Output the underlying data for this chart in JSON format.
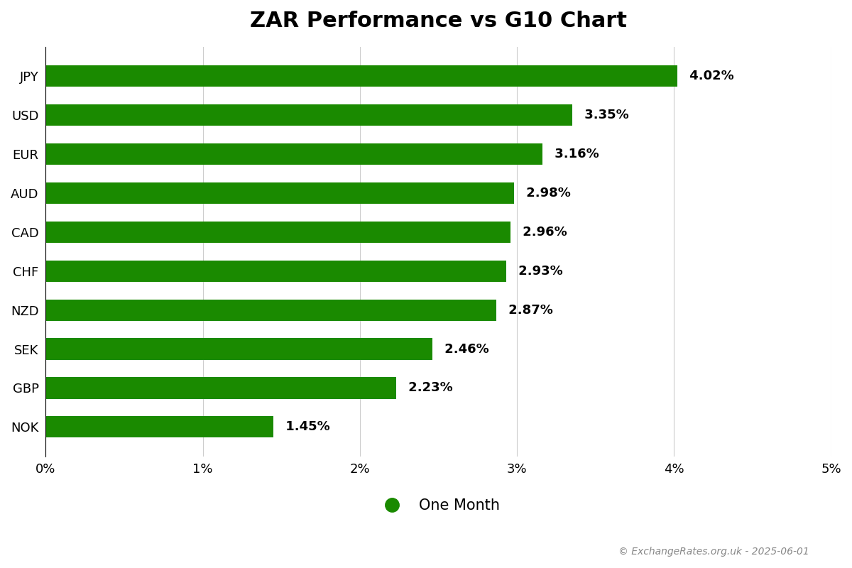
{
  "title": "ZAR Performance vs G10 Chart",
  "currencies": [
    "NOK",
    "GBP",
    "SEK",
    "NZD",
    "CHF",
    "CAD",
    "AUD",
    "EUR",
    "USD",
    "JPY"
  ],
  "values": [
    1.45,
    2.23,
    2.46,
    2.87,
    2.93,
    2.96,
    2.98,
    3.16,
    3.35,
    4.02
  ],
  "labels": [
    "1.45%",
    "2.23%",
    "2.46%",
    "2.87%",
    "2.93%",
    "2.96%",
    "2.98%",
    "3.16%",
    "3.35%",
    "4.02%"
  ],
  "bar_color": "#1a8a00",
  "background_color": "#ffffff",
  "xlim": [
    0,
    5
  ],
  "xticks": [
    0,
    1,
    2,
    3,
    4,
    5
  ],
  "xtick_labels": [
    "0%",
    "1%",
    "2%",
    "3%",
    "4%",
    "5%"
  ],
  "legend_label": "One Month",
  "legend_color": "#1a8a00",
  "copyright_text": "© ExchangeRates.org.uk - 2025-06-01",
  "title_fontsize": 22,
  "label_fontsize": 13,
  "tick_fontsize": 13,
  "bar_height": 0.55
}
